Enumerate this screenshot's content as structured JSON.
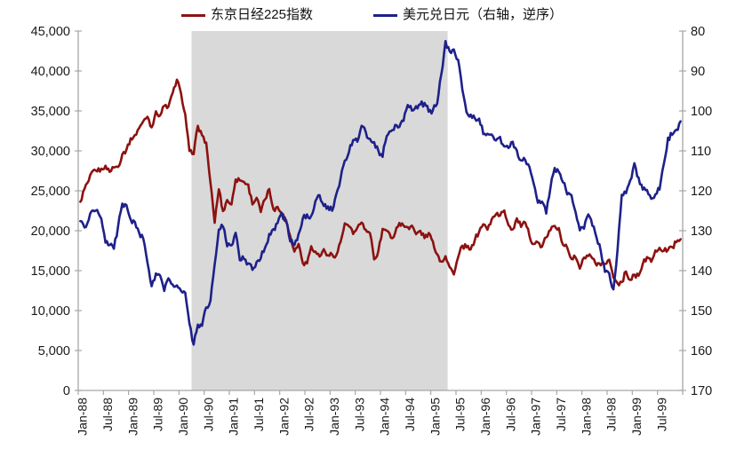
{
  "legend": {
    "items": [
      {
        "label": "东京日经225指数",
        "color": "#8C1210"
      },
      {
        "label": "美元兑日元（右轴，逆序）",
        "color": "#1E2189"
      }
    ]
  },
  "colors": {
    "axis": "#A6A6A6",
    "tick_text": "#1A1A1A",
    "background": "#FFFFFF",
    "band": "#D9D9D9"
  },
  "chart_data": {
    "type": "line",
    "title": "",
    "x_axis": {
      "start": "Jan-88",
      "end": "Dec-99",
      "frequency": "monthly",
      "tick_labels": [
        "Jan-88",
        "Jul-88",
        "Jan-89",
        "Jul-89",
        "Jan-90",
        "Jul-90",
        "Jan-91",
        "Jul-91",
        "Jan-92",
        "Jul-92",
        "Jan-93",
        "Jul-93",
        "Jan-94",
        "Jul-94",
        "Jan-95",
        "Jul-95",
        "Jan-96",
        "Jul-96",
        "Jan-97",
        "Jul-97",
        "Jan-98",
        "Jul-98",
        "Jan-99",
        "Jul-99"
      ]
    },
    "left_axis": {
      "min": 0,
      "max": 45000,
      "step": 5000,
      "tick_labels": [
        "0",
        "5,000",
        "10,000",
        "15,000",
        "20,000",
        "25,000",
        "30,000",
        "35,000",
        "40,000",
        "45,000"
      ],
      "series": "东京日经225指数"
    },
    "right_axis": {
      "min": 80,
      "max": 170,
      "step": 10,
      "reversed": true,
      "tick_labels": [
        "80",
        "90",
        "100",
        "110",
        "120",
        "130",
        "140",
        "150",
        "160",
        "170"
      ],
      "series": "美元兑日元"
    },
    "shaded_region": {
      "from": "Apr-90",
      "to": "Apr-95",
      "color": "#D9D9D9"
    },
    "series": [
      {
        "id": "nikkei225",
        "name": "东京日经225指数",
        "axis": "left",
        "color": "#8C1210",
        "values": [
          23622,
          25243,
          26260,
          27509,
          27417,
          27769,
          28149,
          27366,
          27923,
          27983,
          29579,
          30159,
          31581,
          31986,
          32839,
          33713,
          34267,
          32949,
          34954,
          34431,
          35637,
          35549,
          37269,
          38916,
          37189,
          34592,
          29980,
          29585,
          33131,
          31940,
          31036,
          25978,
          20984,
          25194,
          22455,
          23849,
          23293,
          26409,
          26292,
          26111,
          25790,
          23291,
          24121,
          22336,
          23916,
          25222,
          22687,
          22984,
          22023,
          21339,
          19346,
          17391,
          18348,
          15952,
          15910,
          18061,
          17399,
          16767,
          17684,
          16925,
          17024,
          16953,
          18591,
          20919,
          20552,
          19590,
          20380,
          21027,
          20106,
          19703,
          16406,
          17417,
          20229,
          19997,
          19112,
          19725,
          20974,
          20644,
          20449,
          20629,
          19564,
          19990,
          19070,
          19723,
          18650,
          17053,
          16140,
          16807,
          15437,
          14517,
          16677,
          18117,
          17913,
          17655,
          18880,
          19868,
          20813,
          20125,
          21407,
          22041,
          21886,
          22531,
          20693,
          20167,
          21556,
          20467,
          21021,
          19361,
          18330,
          18557,
          18003,
          19151,
          20069,
          20605,
          20331,
          18229,
          17888,
          16459,
          16636,
          15259,
          16628,
          16832,
          16527,
          15641,
          15671,
          15830,
          16379,
          14108,
          13406,
          13565,
          14884,
          13842,
          14499,
          14368,
          15837,
          16702,
          16112,
          17530,
          17861,
          17479,
          17605,
          17942,
          18558,
          18934
        ]
      },
      {
        "id": "usdjpy",
        "name": "美元兑日元（右轴，逆序）",
        "axis": "right",
        "color": "#1E2189",
        "values": [
          127.6,
          129.2,
          127.3,
          124.9,
          124.8,
          127.0,
          133.0,
          133.6,
          134.5,
          128.8,
          123.2,
          123.6,
          127.2,
          127.8,
          130.5,
          132.0,
          138.0,
          143.9,
          140.7,
          141.2,
          145.1,
          141.9,
          143.5,
          143.7,
          145.1,
          145.5,
          153.2,
          158.5,
          153.5,
          153.8,
          149.2,
          147.5,
          138.4,
          129.7,
          129.0,
          133.9,
          133.7,
          130.5,
          137.4,
          137.1,
          138.2,
          139.8,
          137.8,
          136.9,
          134.3,
          130.8,
          129.6,
          128.1,
          125.5,
          127.7,
          132.7,
          133.6,
          130.8,
          126.9,
          125.9,
          126.3,
          122.6,
          121.1,
          123.8,
          123.9,
          125.0,
          120.8,
          117.0,
          112.4,
          110.3,
          107.3,
          107.7,
          103.7,
          105.3,
          107.0,
          107.8,
          109.9,
          111.5,
          106.3,
          105.1,
          103.5,
          104.0,
          102.5,
          98.5,
          99.9,
          98.8,
          98.4,
          98.0,
          100.2,
          99.8,
          98.2,
          90.8,
          82.5,
          85.1,
          84.6,
          87.2,
          94.6,
          100.3,
          100.9,
          101.9,
          101.9,
          105.8,
          105.7,
          105.9,
          107.4,
          106.5,
          108.9,
          109.3,
          107.7,
          109.9,
          112.4,
          112.3,
          114.0,
          118.2,
          123.0,
          122.7,
          125.7,
          119.2,
          114.3,
          115.3,
          117.9,
          120.9,
          121.1,
          125.4,
          129.9,
          129.5,
          125.9,
          128.8,
          131.8,
          135.1,
          140.3,
          140.7,
          144.7,
          134.6,
          121.0,
          120.6,
          117.4,
          113.1,
          116.7,
          119.7,
          119.8,
          122.0,
          120.9,
          119.7,
          113.3,
          106.7,
          106.0,
          104.7,
          102.6
        ]
      }
    ]
  }
}
